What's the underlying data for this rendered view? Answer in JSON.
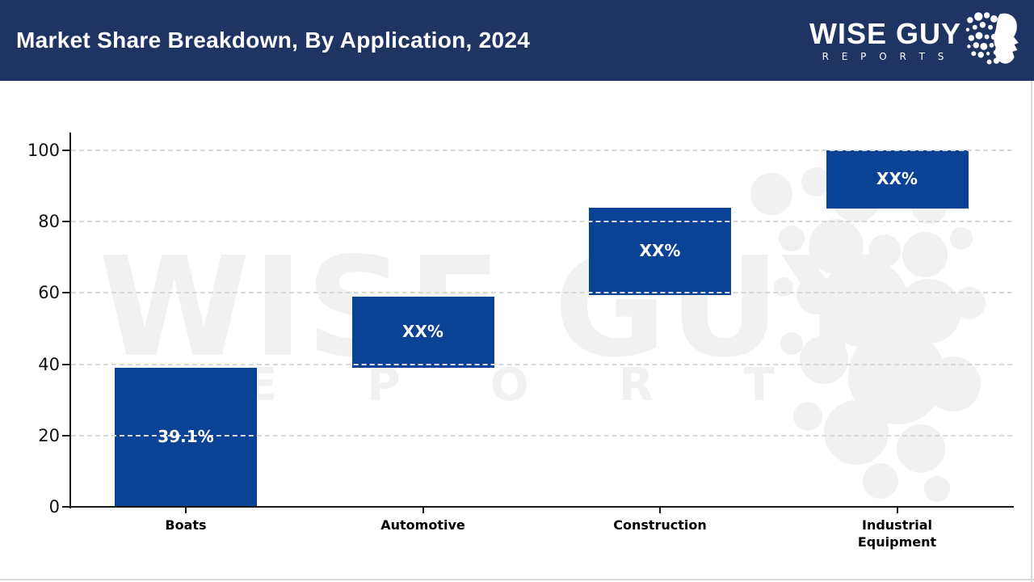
{
  "header": {
    "title": "Market Share Breakdown, By Application, 2024",
    "logo_line1": "WISE GUY",
    "logo_line2": "R E P O R T S",
    "bg_color": "#1e3564"
  },
  "watermark": {
    "line1": "WISE GUY",
    "line2": "R E P O R T S"
  },
  "chart_data": {
    "type": "bar",
    "subtype": "floating-segment-waterfall",
    "title": "Market Share Breakdown, By Application, 2024",
    "xlabel": "",
    "ylabel": "",
    "ylim": [
      0,
      105
    ],
    "yticks": [
      0,
      20,
      40,
      60,
      80,
      100
    ],
    "grid": "horizontal-dashed",
    "grid_color": "#d9d9d9",
    "bar_color": "#0a4296",
    "value_label_color": "#ffffff",
    "categories": [
      "Boats",
      "Automotive",
      "Construction",
      "Industrial\nEquipment"
    ],
    "bars": [
      {
        "category": "Boats",
        "start": 0,
        "end": 39.1,
        "label": "39.1%"
      },
      {
        "category": "Automotive",
        "start": 39.1,
        "end": 59.0,
        "label": "XX%"
      },
      {
        "category": "Construction",
        "start": 59.3,
        "end": 83.9,
        "label": "XX%"
      },
      {
        "category": "Industrial Equipment",
        "start": 83.7,
        "end": 100.0,
        "label": "XX%"
      }
    ]
  }
}
